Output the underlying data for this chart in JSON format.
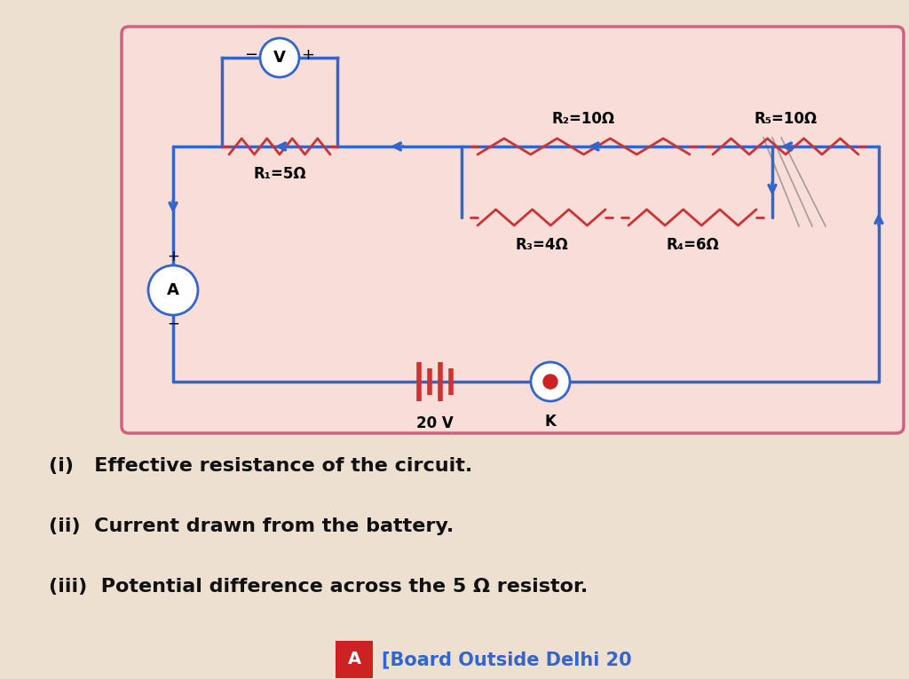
{
  "background_color": "#ede0d0",
  "circuit_bg": "#f9ddd8",
  "wire_color_blue": "#3366cc",
  "wire_color_pink": "#d06080",
  "resistor_color": "#cc3333",
  "text_color": "#111111",
  "title_items": [
    "(i)   Effective resistance of the circuit.",
    "(ii)  Current drawn from the battery.",
    "(iii)  Potential difference across the 5 Ω resistor."
  ],
  "answer_bg": "#cc2222",
  "R1_label": "R₁=5Ω",
  "R2_label": "R₂=10Ω",
  "R3_label": "R₃=4Ω",
  "R4_label": "R₄=6Ω",
  "R5_label": "R₅=10Ω",
  "battery_label": "20 V",
  "key_label": "K",
  "voltmeter_label": "V",
  "ammeter_label": "A"
}
